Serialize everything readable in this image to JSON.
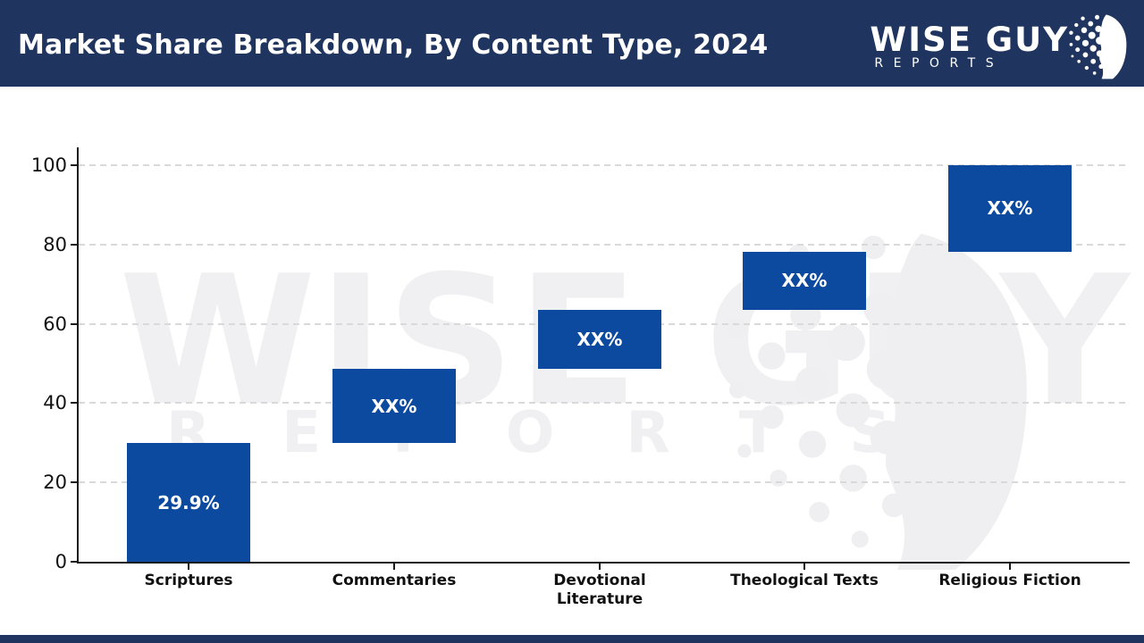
{
  "header": {
    "title": "Market Share Breakdown, By Content Type, 2024",
    "logo": {
      "name": "WISE GUY",
      "sub": "REPORTS"
    }
  },
  "watermark": {
    "name": "WISE GUY",
    "sub": "REPORTS"
  },
  "chart_data": {
    "type": "bar",
    "subtype": "waterfall",
    "title": "Market Share Breakdown, By Content Type, 2024",
    "categories": [
      "Scriptures",
      "Commentaries",
      "Devotional\nLiterature",
      "Theological Texts",
      "Religious Fiction"
    ],
    "segments": [
      {
        "category": "Scriptures",
        "start": 0,
        "end": 29.9,
        "label": "29.9%"
      },
      {
        "category": "Commentaries",
        "start": 29.9,
        "end": 48.6,
        "label": "XX%"
      },
      {
        "category": "Devotional Literature",
        "start": 48.6,
        "end": 63.5,
        "label": "XX%"
      },
      {
        "category": "Theological Texts",
        "start": 63.5,
        "end": 78.2,
        "label": "XX%"
      },
      {
        "category": "Religious Fiction",
        "start": 78.2,
        "end": 100,
        "label": "XX%"
      }
    ],
    "y_ticks": [
      0,
      20,
      40,
      60,
      80,
      100
    ],
    "ylim": [
      0,
      105
    ],
    "xlabel": "",
    "ylabel": "",
    "legend": false,
    "grid": "horizontal-dashed",
    "colors": {
      "bar": "#0b4a9e",
      "bar_label": "#ffffff",
      "axis": "#1a1a1a",
      "grid": "#d9d9d9",
      "tick_text": "#111111",
      "header_bg": "#1f345e",
      "watermark": "#f0f0f2"
    }
  }
}
